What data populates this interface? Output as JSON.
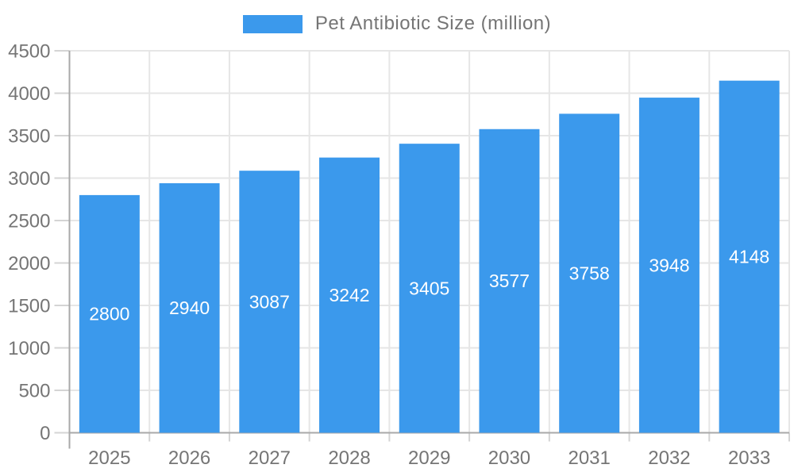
{
  "chart_data": {
    "type": "bar",
    "title": "Pet Antibiotic Size (million)",
    "categories": [
      "2025",
      "2026",
      "2027",
      "2028",
      "2029",
      "2030",
      "2031",
      "2032",
      "2033"
    ],
    "values": [
      2800,
      2940,
      3087,
      3242,
      3405,
      3577,
      3758,
      3948,
      4148
    ],
    "xlabel": "",
    "ylabel": "",
    "ylim": [
      0,
      4500
    ],
    "ytick_step": 500,
    "grid": true,
    "legend_position": "top-center",
    "colors": {
      "bar": "#3B99EC",
      "bar_value_label": "#FFFFFF",
      "axis_text": "#757575",
      "gridline": "#E6E6E6",
      "axis_line": "#A9A9A9",
      "tick": "#D4D4D4",
      "background": "#FFFFFF"
    }
  },
  "legend": {
    "label": "Pet Antibiotic Size (million)",
    "swatch_color": "#3B99EC"
  }
}
